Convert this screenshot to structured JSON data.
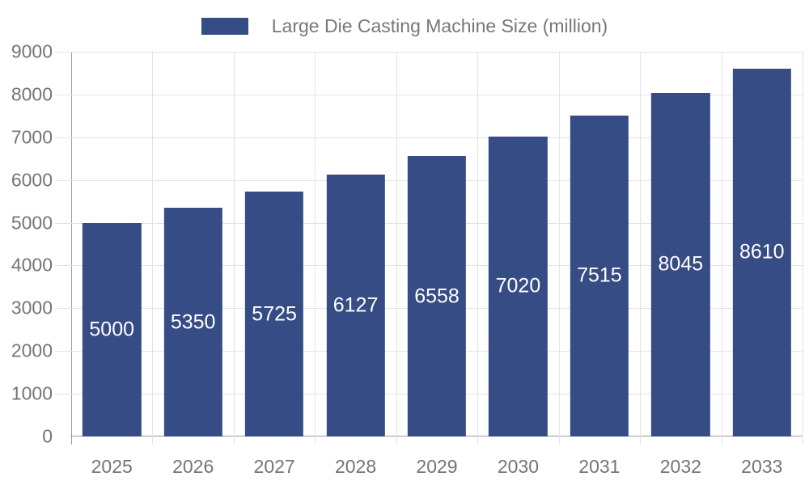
{
  "legend": {
    "label": "Large Die Casting Machine Size (million)"
  },
  "colors": {
    "bar": "#364C84",
    "bar_label": "#FFFFFF",
    "grid_line": "#E2E3E6",
    "axis_line": "#9B9DA0",
    "tick_text": "#727578",
    "legend_text": "#75787B",
    "background": "#FFFFFF"
  },
  "chart_data": {
    "type": "bar",
    "title": "Large Die Casting Machine Size (million)",
    "categories": [
      "2025",
      "2026",
      "2027",
      "2028",
      "2029",
      "2030",
      "2031",
      "2032",
      "2033"
    ],
    "series": [
      {
        "name": "Large Die Casting Machine Size (million)",
        "values": [
          5000,
          5350,
          5725,
          6127,
          6558,
          7020,
          7515,
          8045,
          8610
        ]
      }
    ],
    "xlabel": "",
    "ylabel": "",
    "ylim": [
      0,
      9000
    ],
    "yticks": [
      0,
      1000,
      2000,
      3000,
      4000,
      5000,
      6000,
      7000,
      8000,
      9000
    ],
    "grid": true,
    "legend_position": "top",
    "data_labels_visible": true,
    "bar_width_fraction": 0.72
  }
}
